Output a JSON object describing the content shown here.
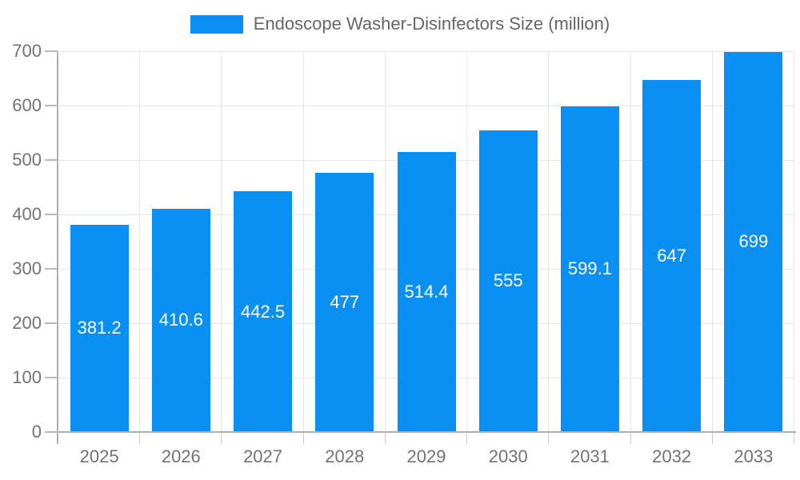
{
  "legend": {
    "label": "Endoscope Washer-Disinfectors Size (million)"
  },
  "colors": {
    "bar": "#0990f2",
    "grid": "#e6e6e6",
    "axis": "#b0b0b0",
    "tick_text": "#737373",
    "legend_text": "#666666",
    "bar_label_text": "#ffffff",
    "background": "#ffffff"
  },
  "chart_data": {
    "type": "bar",
    "title": "Endoscope Washer-Disinfectors Size (million)",
    "series_name": "Endoscope Washer-Disinfectors Size (million)",
    "categories": [
      "2025",
      "2026",
      "2027",
      "2028",
      "2029",
      "2030",
      "2031",
      "2032",
      "2033"
    ],
    "values": [
      381.2,
      410.6,
      442.5,
      477,
      514.4,
      555,
      599.1,
      647,
      699
    ],
    "data_labels": [
      "381.2",
      "410.6",
      "442.5",
      "477",
      "514.4",
      "555",
      "599.1",
      "647",
      "699"
    ],
    "xlabel": "",
    "ylabel": "",
    "ylim": [
      0,
      700
    ],
    "yticks": [
      0,
      100,
      200,
      300,
      400,
      500,
      600,
      700
    ],
    "grid": true,
    "gridlines": "horizontal-and-vertical",
    "legend_position": "top-center",
    "data_label_position": "inside-center",
    "bar_color": "#0990f2"
  }
}
